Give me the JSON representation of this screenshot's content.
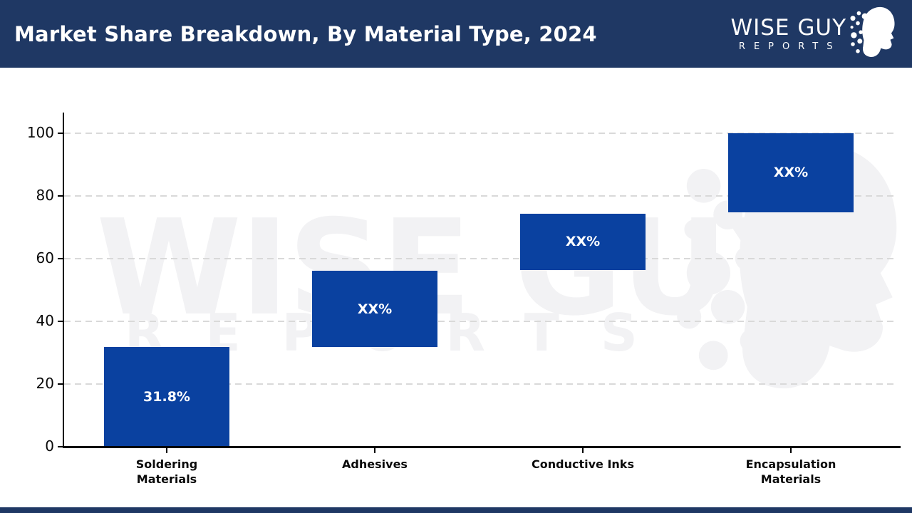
{
  "header": {
    "title": "Market Share Breakdown, By Material Type, 2024",
    "bg_color": "#1f3864",
    "logo": {
      "line1": "WISE GUY",
      "line2": "REPORTS"
    }
  },
  "watermark": {
    "line1": "WISE GUY",
    "line2": "REPORTS"
  },
  "chart_data": {
    "type": "bar",
    "subtype": "waterfall",
    "title": "Market Share Breakdown, By Material Type, 2024",
    "categories": [
      "Soldering\nMaterials",
      "Adhesives",
      "Conductive Inks",
      "Encapsulation\nMaterials"
    ],
    "segments": [
      {
        "category": "Soldering Materials",
        "start": 0,
        "end": 31.8,
        "label": "31.8%"
      },
      {
        "category": "Adhesives",
        "start": 31.8,
        "end": 56.1,
        "label": "XX%"
      },
      {
        "category": "Conductive Inks",
        "start": 56.4,
        "end": 74.3,
        "label": "XX%"
      },
      {
        "category": "Encapsulation Materials",
        "start": 74.8,
        "end": 100,
        "label": "XX%"
      }
    ],
    "ylim": [
      0,
      100
    ],
    "yticks": [
      0,
      20,
      40,
      60,
      80,
      100
    ],
    "xlabel": "",
    "ylabel": "",
    "grid": "horizontal-dashed",
    "legend": "none",
    "bar_color": "#0a41a0",
    "bar_label_color": "#ffffff",
    "axis_color": "#000000",
    "grid_color": "#d9d9d9",
    "watermark_color": "#f2f2f4"
  }
}
